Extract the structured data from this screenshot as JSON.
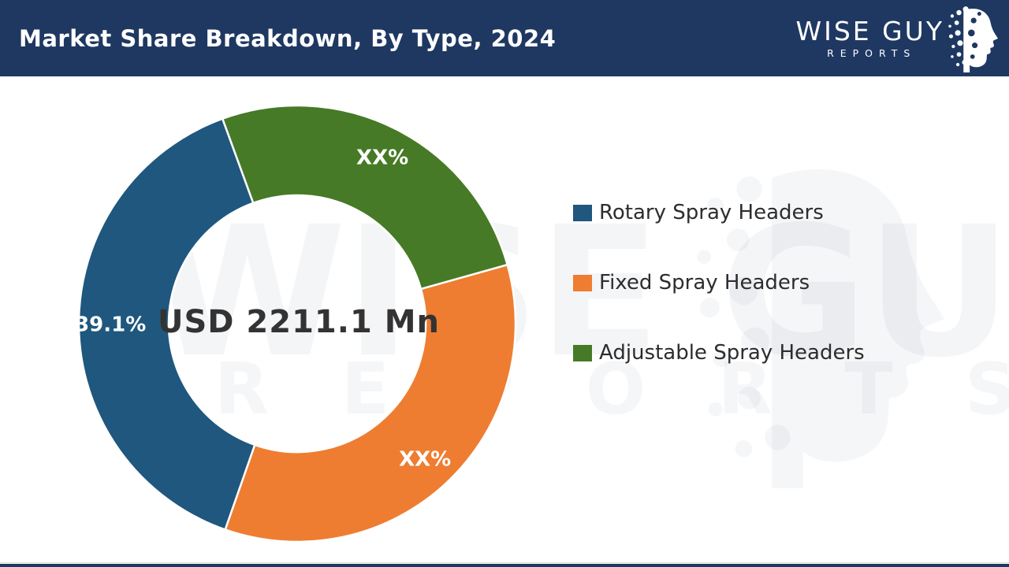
{
  "header": {
    "title": "Market Share Breakdown, By Type, 2024",
    "brand_name": "WISE GUY",
    "brand_tagline": "REPORTS"
  },
  "colors": {
    "header_navy": "#1F3862",
    "slice_blue": "#1F577E",
    "slice_orange": "#EE7D32",
    "slice_green": "#467A26",
    "center_text": "#333333",
    "slice_label_text": "#FFFFFF"
  },
  "chart_data": {
    "type": "pie",
    "subtype": "donut",
    "title": "Market Share Breakdown, By Type, 2024",
    "year": "2024",
    "center_label": "USD 2211.1 Mn",
    "start_angle_deg": 110,
    "direction": "counterclockwise",
    "legend_position": "right",
    "slices": [
      {
        "name": "Rotary Spray Headers",
        "label": "39.1%",
        "value_pct": 39.1,
        "color": "#1F577E"
      },
      {
        "name": "Fixed Spray Headers",
        "label": "XX%",
        "value_pct": 34.7,
        "color": "#EE7D32"
      },
      {
        "name": "Adjustable Spray Headers",
        "label": "XX%",
        "value_pct": 26.2,
        "color": "#467A26"
      }
    ]
  },
  "watermark": {
    "line1": "WISE GUY",
    "line2": "R E P O R T S"
  }
}
